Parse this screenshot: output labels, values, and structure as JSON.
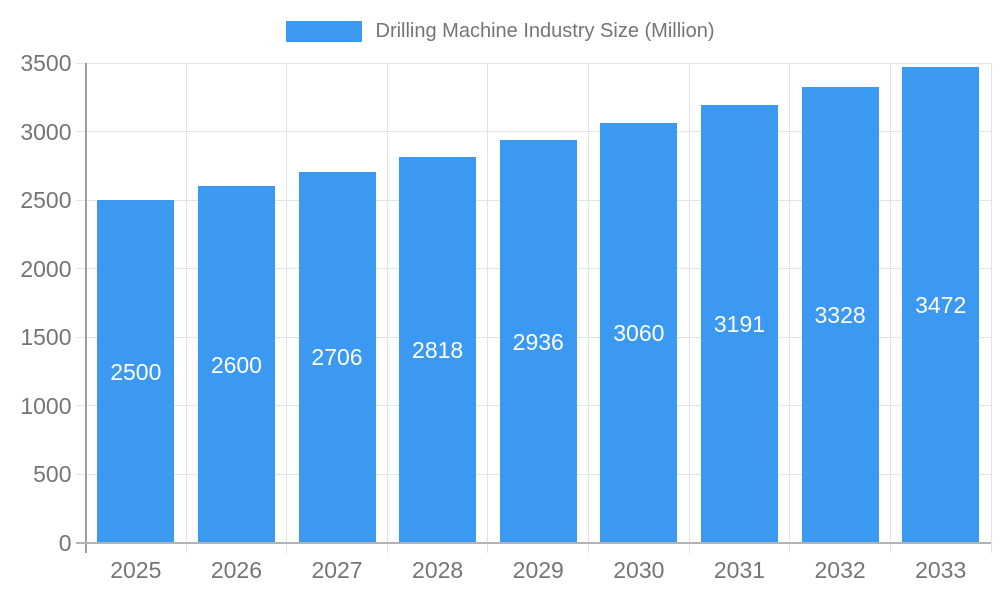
{
  "legend": {
    "label": "Drilling Machine Industry Size (Million)",
    "swatch_color": "#3b99f1"
  },
  "chart_data": {
    "type": "bar",
    "title": "Drilling Machine Industry Size (Million)",
    "series_name": "Drilling Machine Industry Size (Million)",
    "categories": [
      "2025",
      "2026",
      "2027",
      "2028",
      "2029",
      "2030",
      "2031",
      "2032",
      "2033"
    ],
    "values": [
      2500,
      2600,
      2706,
      2818,
      2936,
      3060,
      3191,
      3328,
      3472
    ],
    "value_labels": [
      "2500",
      "2600",
      "2706",
      "2818",
      "2936",
      "3060",
      "3191",
      "3328",
      "3472"
    ],
    "xlabel": "",
    "ylabel": "",
    "ylim": [
      0,
      3500
    ],
    "yticks": [
      0,
      500,
      1000,
      1500,
      2000,
      2500,
      3000,
      3500
    ],
    "grid": true,
    "legend_position": "top",
    "colors": {
      "bar": "#3b99f1",
      "value_label": "#ffffff",
      "axis_text": "#757575",
      "gridline": "#e3e3e3",
      "y_axis_line": "#9e9e9e",
      "x_axis_line": "#b3b3b3",
      "background": "#ffffff"
    }
  }
}
